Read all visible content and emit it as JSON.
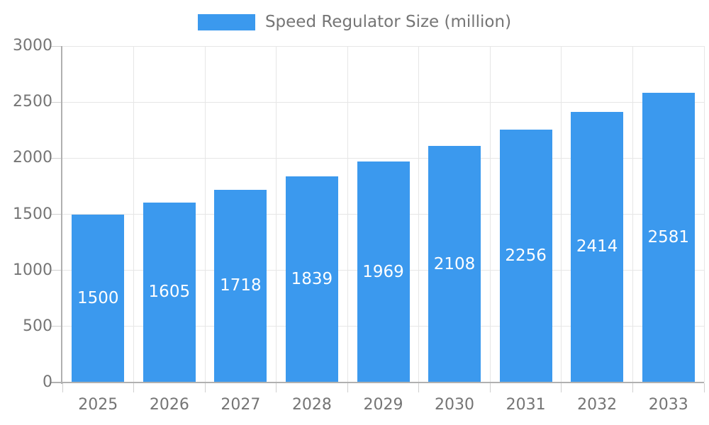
{
  "legend": {
    "label": "Speed Regulator Size (million)"
  },
  "chart_data": {
    "type": "bar",
    "title": "Speed Regulator Size (million)",
    "categories": [
      "2025",
      "2026",
      "2027",
      "2028",
      "2029",
      "2030",
      "2031",
      "2032",
      "2033"
    ],
    "values": [
      1500,
      1605,
      1718,
      1839,
      1969,
      2108,
      2256,
      2414,
      2581
    ],
    "xlabel": "",
    "ylabel": "",
    "ylim": [
      0,
      3000
    ],
    "yticks": [
      0,
      500,
      1000,
      1500,
      2000,
      2500,
      3000
    ],
    "grid": true,
    "legend_position": "top-center",
    "bar_color": "#3b99ee",
    "value_label_color": "#ffffff",
    "axis_color": "#b0b0b0",
    "grid_color": "#e6e6e6",
    "tick_color": "#cfcfcf",
    "text_color": "#757575"
  }
}
